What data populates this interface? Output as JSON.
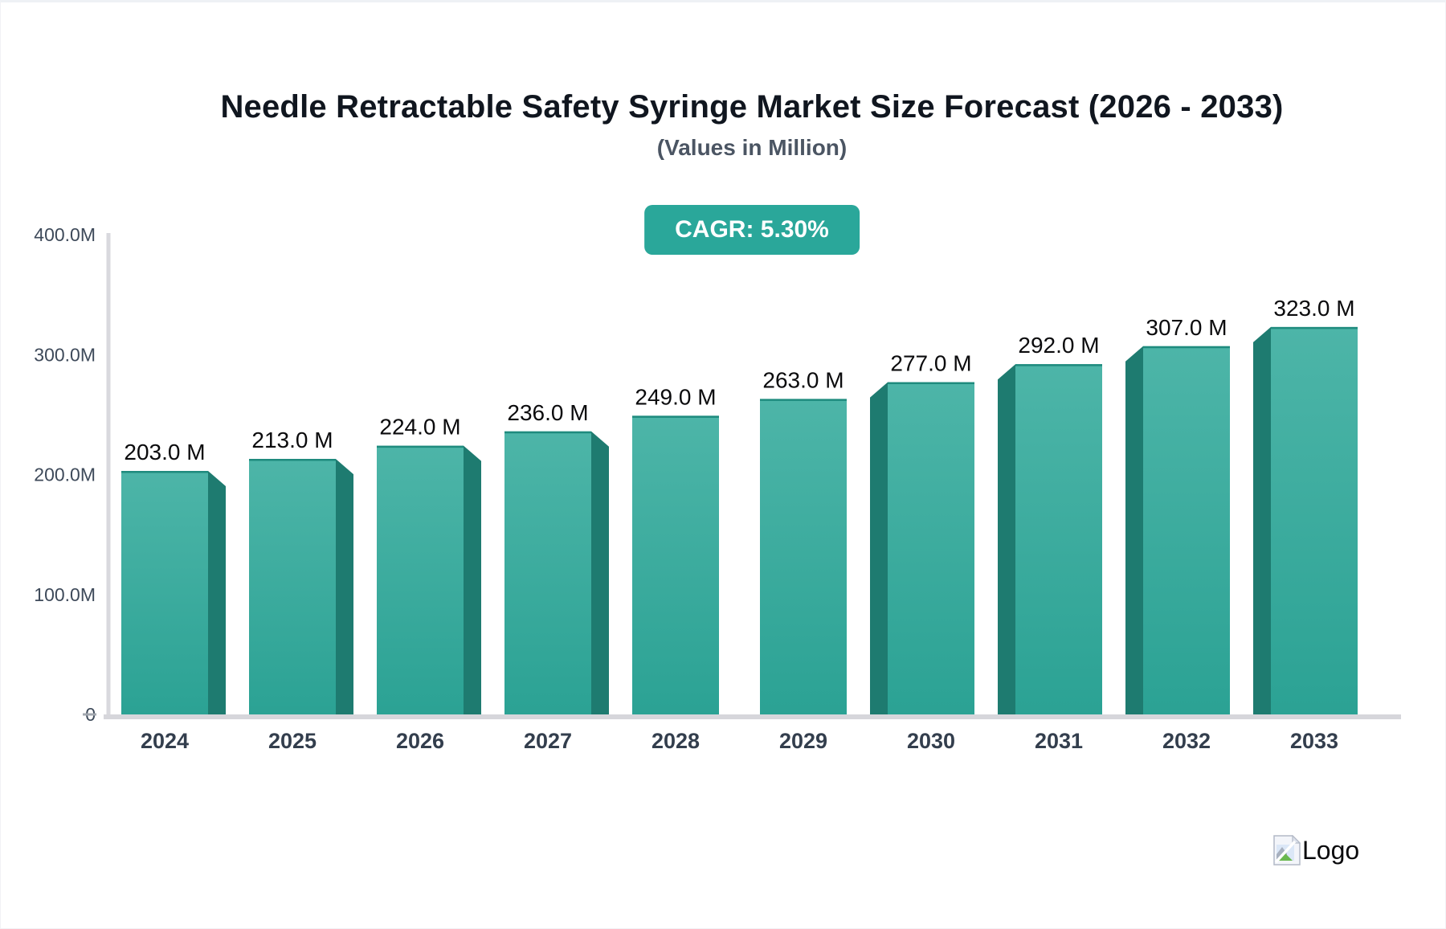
{
  "header": {
    "title": "Needle Retractable Safety Syringe Market Size Forecast (2026 - 2033)",
    "subtitle": "(Values in Million)",
    "cagr_badge": "CAGR: 5.30%"
  },
  "chart_data": {
    "type": "bar",
    "title": "Needle Retractable Safety Syringe Market Size Forecast (2026 - 2033)",
    "subtitle": "(Values in Million)",
    "cagr": "5.30%",
    "categories": [
      "2024",
      "2025",
      "2026",
      "2027",
      "2028",
      "2029",
      "2030",
      "2031",
      "2032",
      "2033"
    ],
    "values": [
      203.0,
      213.0,
      224.0,
      236.0,
      249.0,
      263.0,
      277.0,
      292.0,
      307.0,
      323.0
    ],
    "value_labels": [
      "203.0 M",
      "213.0 M",
      "224.0 M",
      "236.0 M",
      "249.0 M",
      "263.0 M",
      "277.0 M",
      "292.0 M",
      "307.0 M",
      "323.0 M"
    ],
    "yticks": [
      {
        "value": 400,
        "label": "400.0M"
      },
      {
        "value": 300,
        "label": "300.0M"
      },
      {
        "value": 200,
        "label": "200.0M"
      },
      {
        "value": 100,
        "label": "100.0M"
      },
      {
        "value": 0,
        "label": "0"
      }
    ],
    "ylim": [
      0,
      400
    ],
    "grid": false,
    "legend": false,
    "colors": {
      "bar_face_top": "#4DB5A8",
      "bar_face_bottom": "#2BA294",
      "bar_side": "#1E7B70",
      "bar_top_stroke": "#1F8B7E",
      "badge_bg": "#2AA79A",
      "axis_line": "#D9D9DE",
      "baseline": "#D6D6DB",
      "tick_dash": "#A2A7AF",
      "ytick_text": "#3E4A5A",
      "year_text": "#333E4D",
      "value_text": "#0B0B0D"
    }
  },
  "footer": {
    "logo_text": "Logo"
  }
}
